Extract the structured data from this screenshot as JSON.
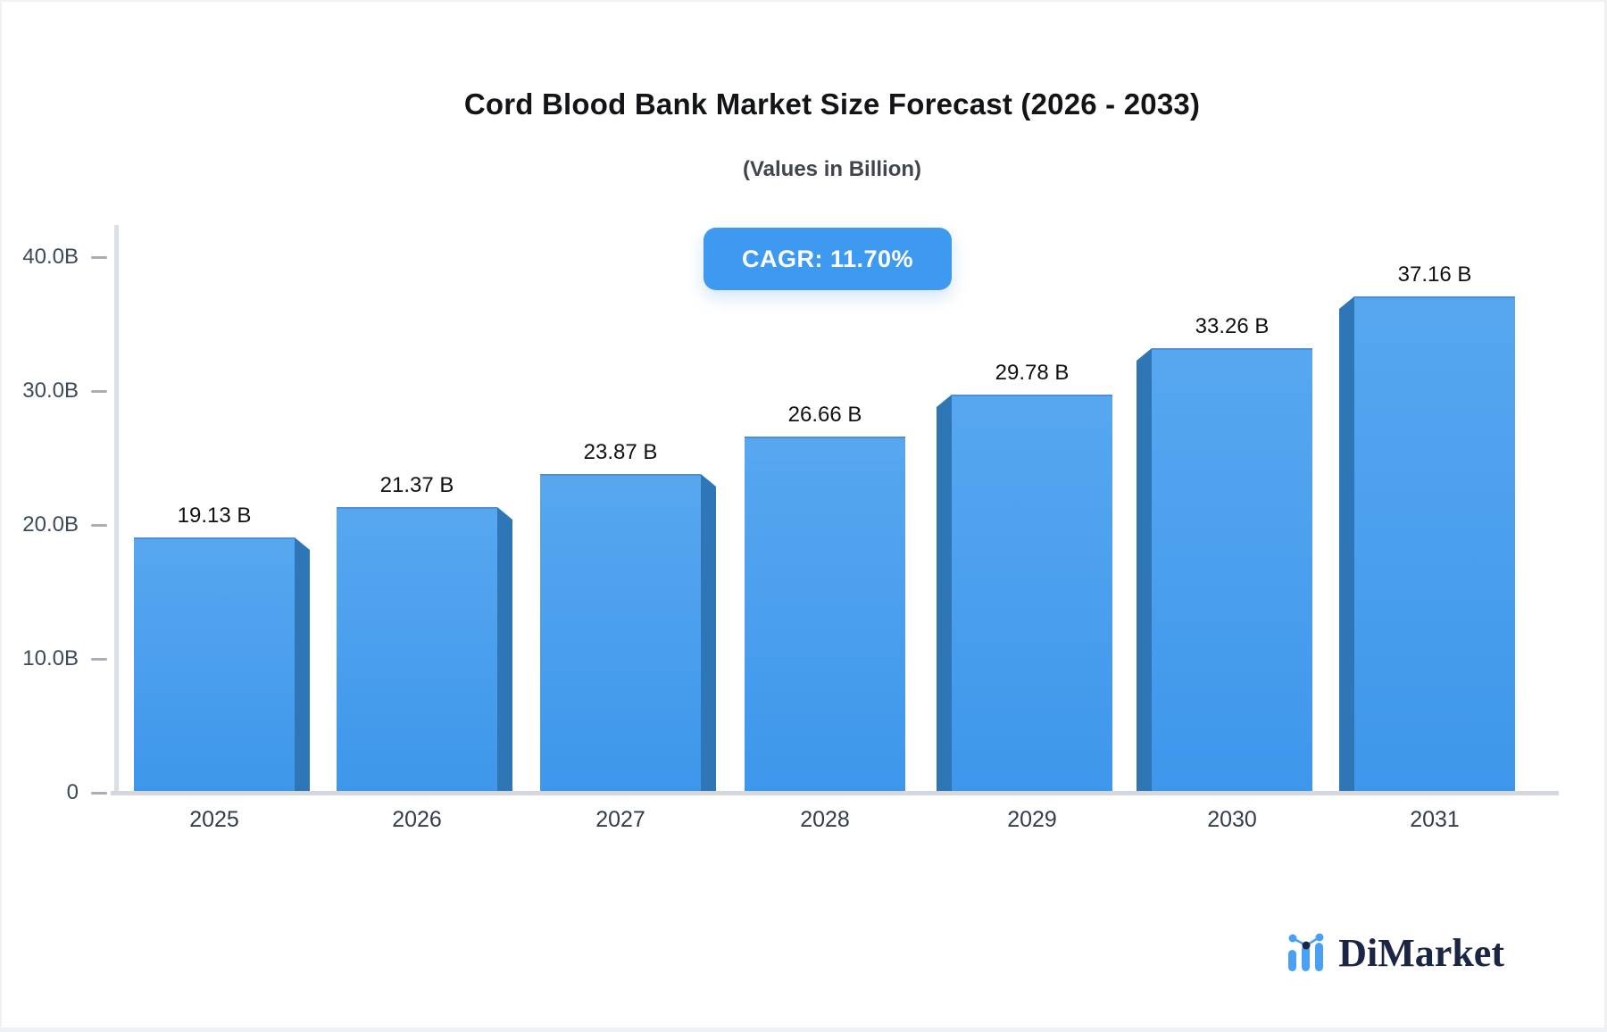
{
  "page": {
    "title": "Cord Blood Bank Market Size Forecast (2026 - 2033)",
    "subtitle": "(Values in Billion)"
  },
  "badge": {
    "label": "CAGR: 11.70%"
  },
  "chart_data": {
    "type": "bar",
    "title": "Cord Blood Bank Market Size Forecast (2026 - 2033)",
    "subtitle": "(Values in Billion)",
    "cagr_label": "CAGR: 11.70%",
    "categories": [
      "2025",
      "2026",
      "2027",
      "2028",
      "2029",
      "2030",
      "2031"
    ],
    "values": [
      19.13,
      21.37,
      23.87,
      26.66,
      29.78,
      33.26,
      37.16
    ],
    "value_labels": [
      "19.13 B",
      "21.37 B",
      "23.87 B",
      "26.66 B",
      "29.78 B",
      "33.26 B",
      "37.16 B"
    ],
    "ylim": [
      0,
      40
    ],
    "yticks": [
      {
        "label": "40.0B",
        "value": 40
      },
      {
        "label": "30.0B",
        "value": 30
      },
      {
        "label": "20.0B",
        "value": 20
      },
      {
        "label": "10.0B",
        "value": 10
      },
      {
        "label": "0",
        "value": 0
      }
    ],
    "xlabel": "",
    "ylabel": "",
    "grid": false,
    "legend": "none",
    "colors": {
      "bar_gradient_top": "#57A7F0",
      "bar_gradient_bottom": "#3E97EB",
      "bar_top_edge": "#4E90D6",
      "bar_side_3d": "#2E76B6",
      "badge_bg": "#3D9AF0",
      "axis_line": "#DBDEE2",
      "tick_text": "#3D4A59",
      "value_text": "#101114"
    }
  },
  "logo": {
    "text": "DiMarket"
  }
}
